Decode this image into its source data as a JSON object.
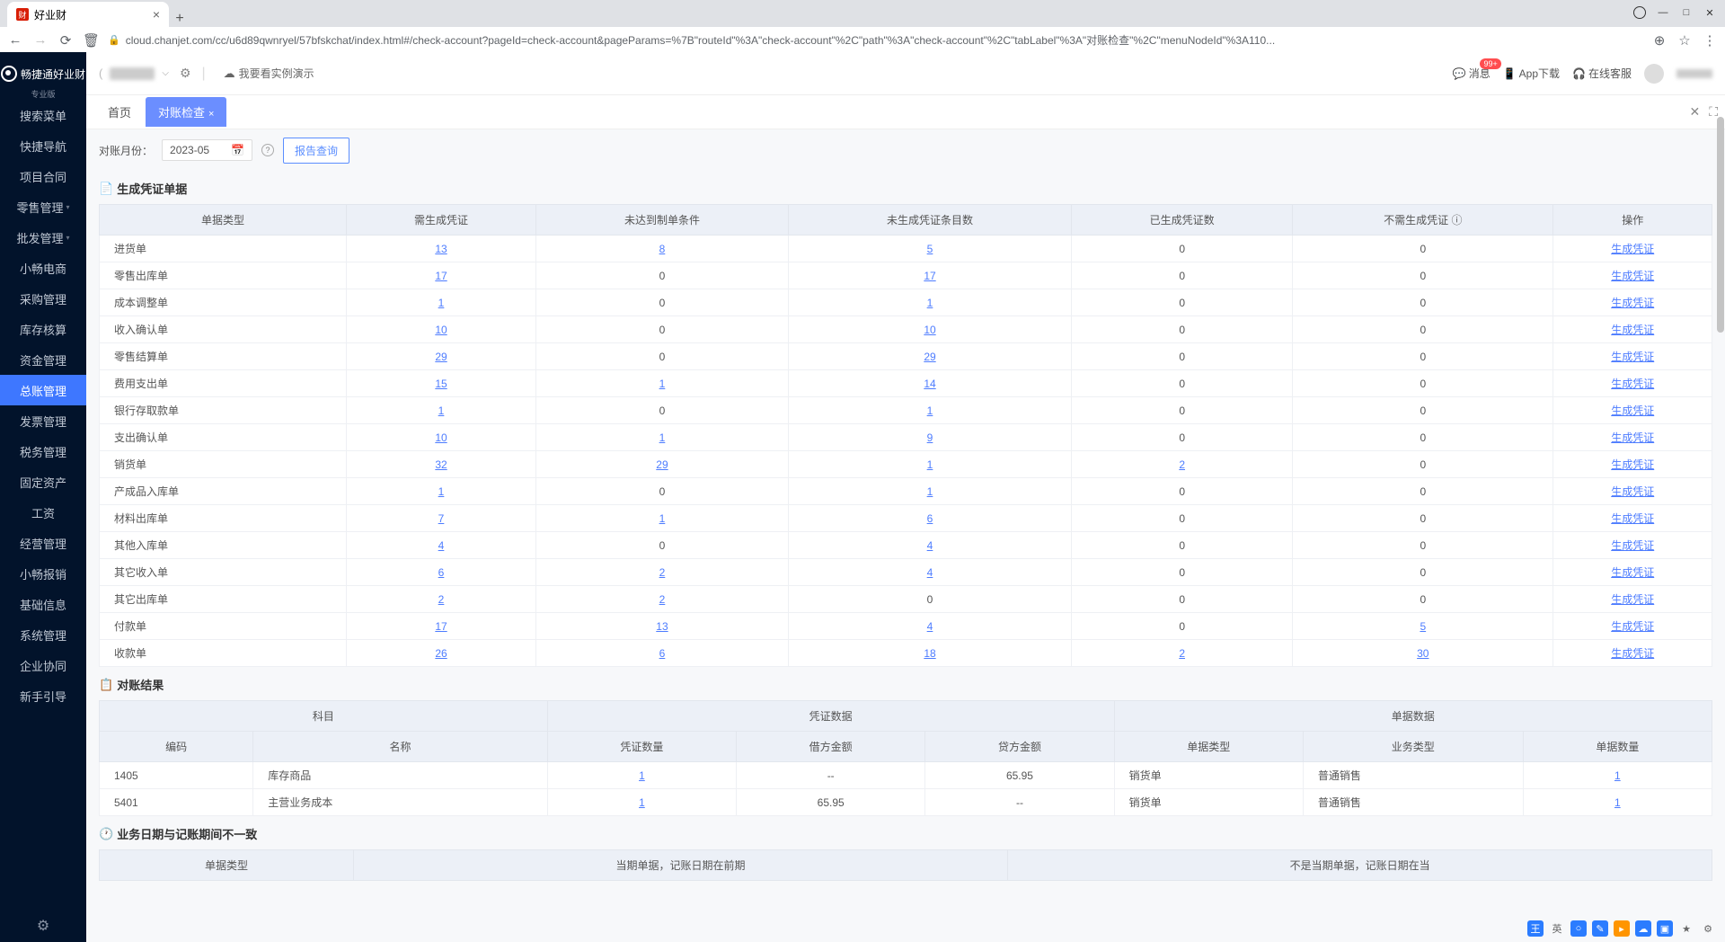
{
  "browser": {
    "tab_title": "好业财",
    "url": "cloud.chanjet.com/cc/u6d89qwnryel/57bfskchat/index.html#/check-account?pageId=check-account&pageParams=%7B\"routeId\"%3A\"check-account\"%2C\"path\"%3A\"check-account\"%2C\"tabLabel\"%3A\"对账检查\"%2C\"menuNodeId\"%3A110..."
  },
  "brand": {
    "name": "畅捷通好业财",
    "edition": "专业版"
  },
  "sidebar": {
    "items": [
      {
        "label": "搜索菜单"
      },
      {
        "label": "快捷导航"
      },
      {
        "label": "项目合同"
      },
      {
        "label": "零售管理",
        "sub": true
      },
      {
        "label": "批发管理",
        "sub": true
      },
      {
        "label": "小畅电商"
      },
      {
        "label": "采购管理"
      },
      {
        "label": "库存核算"
      },
      {
        "label": "资金管理"
      },
      {
        "label": "总账管理",
        "active": true
      },
      {
        "label": "发票管理"
      },
      {
        "label": "税务管理"
      },
      {
        "label": "固定资产"
      },
      {
        "label": "工资"
      },
      {
        "label": "经营管理"
      },
      {
        "label": "小畅报销"
      },
      {
        "label": "基础信息"
      },
      {
        "label": "系统管理"
      },
      {
        "label": "企业协同"
      },
      {
        "label": "新手引导"
      }
    ]
  },
  "top": {
    "demo": "我要看实例演示",
    "msg": "消息",
    "msg_badge": "99+",
    "download": "App下载",
    "service": "在线客服"
  },
  "tabs": {
    "home": "首页",
    "current": "对账检查"
  },
  "filter": {
    "month_label": "对账月份：",
    "month_value": "2023-05",
    "report_btn": "报告查询"
  },
  "section1": {
    "title": "生成凭证单据",
    "headers": [
      "单据类型",
      "需生成凭证",
      "未达到制单条件",
      "未生成凭证条目数",
      "已生成凭证数",
      "不需生成凭证 ⓘ",
      "操作"
    ],
    "action": "生成凭证",
    "rows": [
      {
        "t": "进货单",
        "a": "13",
        "b": "8",
        "c": "5",
        "d": "0",
        "e": "0"
      },
      {
        "t": "零售出库单",
        "a": "17",
        "b": "0",
        "c": "17",
        "d": "0",
        "e": "0"
      },
      {
        "t": "成本调整单",
        "a": "1",
        "b": "0",
        "c": "1",
        "d": "0",
        "e": "0"
      },
      {
        "t": "收入确认单",
        "a": "10",
        "b": "0",
        "c": "10",
        "d": "0",
        "e": "0"
      },
      {
        "t": "零售结算单",
        "a": "29",
        "b": "0",
        "c": "29",
        "d": "0",
        "e": "0"
      },
      {
        "t": "费用支出单",
        "a": "15",
        "b": "1",
        "c": "14",
        "d": "0",
        "e": "0"
      },
      {
        "t": "银行存取款单",
        "a": "1",
        "b": "0",
        "c": "1",
        "d": "0",
        "e": "0"
      },
      {
        "t": "支出确认单",
        "a": "10",
        "b": "1",
        "c": "9",
        "d": "0",
        "e": "0"
      },
      {
        "t": "销货单",
        "a": "32",
        "b": "29",
        "c": "1",
        "d": "2",
        "e": "0"
      },
      {
        "t": "产成品入库单",
        "a": "1",
        "b": "0",
        "c": "1",
        "d": "0",
        "e": "0"
      },
      {
        "t": "材料出库单",
        "a": "7",
        "b": "1",
        "c": "6",
        "d": "0",
        "e": "0"
      },
      {
        "t": "其他入库单",
        "a": "4",
        "b": "0",
        "c": "4",
        "d": "0",
        "e": "0"
      },
      {
        "t": "其它收入单",
        "a": "6",
        "b": "2",
        "c": "4",
        "d": "0",
        "e": "0"
      },
      {
        "t": "其它出库单",
        "a": "2",
        "b": "2",
        "c": "0",
        "d": "0",
        "e": "0"
      },
      {
        "t": "付款单",
        "a": "17",
        "b": "13",
        "c": "4",
        "d": "0",
        "e": "5"
      },
      {
        "t": "收款单",
        "a": "26",
        "b": "6",
        "c": "18",
        "d": "2",
        "e": "30"
      }
    ]
  },
  "section2": {
    "title": "对账结果",
    "headers": {
      "account": "科目",
      "voucher": "凭证数据",
      "bill": "单据数据",
      "code": "编码",
      "name": "名称",
      "vcount": "凭证数量",
      "debit": "借方金额",
      "credit": "贷方金额",
      "btype": "单据类型",
      "biztype": "业务类型",
      "bcount": "单据数量"
    },
    "rows": [
      {
        "code": "1405",
        "name": "库存商品",
        "vc": "1",
        "db": "--",
        "cr": "65.95",
        "bt": "销货单",
        "biz": "普通销售",
        "bc": "1"
      },
      {
        "code": "5401",
        "name": "主营业务成本",
        "vc": "1",
        "db": "65.95",
        "cr": "--",
        "bt": "销货单",
        "biz": "普通销售",
        "bc": "1"
      }
    ]
  },
  "section3": {
    "title": "业务日期与记账期间不一致",
    "headers": [
      "单据类型",
      "当期单据，记账日期在前期",
      "不是当期单据，记账日期在当"
    ]
  }
}
